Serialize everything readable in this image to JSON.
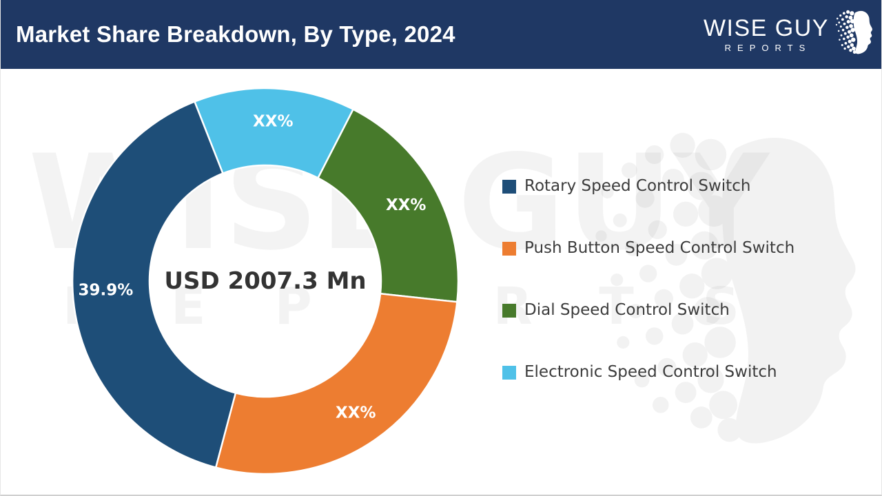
{
  "header": {
    "title": "Market Share Breakdown, By Type, 2024",
    "background_color": "#1f3864",
    "logo": {
      "line1": "WISE GUY",
      "line2": "REPORTS"
    }
  },
  "watermark": {
    "line1": "WISE GUY",
    "line2": "REPORTS"
  },
  "chart_data": {
    "type": "donut",
    "title": "Market Share Breakdown, By Type, 2024",
    "center_label": "USD 2007.3 Mn",
    "start_angle_deg": -21.5,
    "legend_position": "right",
    "segments": [
      {
        "label": "Electronic Speed Control Switch",
        "display_label": "XX%",
        "value_pct": 13.5,
        "color": "#4fc1e8"
      },
      {
        "label": "Dial Speed Control Switch",
        "display_label": "XX%",
        "value_pct": 19.2,
        "color": "#477a2b"
      },
      {
        "label": "Push Button Speed Control Switch",
        "display_label": "XX%",
        "value_pct": 27.4,
        "color": "#ed7d31"
      },
      {
        "label": "Rotary Speed Control Switch",
        "display_label": "39.9%",
        "value_pct": 39.9,
        "color": "#1e4e78"
      }
    ],
    "legend": [
      {
        "label": "Rotary Speed Control Switch",
        "color": "#1e4e78"
      },
      {
        "label": "Push Button Speed Control Switch",
        "color": "#ed7d31"
      },
      {
        "label": "Dial Speed Control Switch",
        "color": "#477a2b"
      },
      {
        "label": "Electronic Speed Control Switch",
        "color": "#4fc1e8"
      }
    ]
  }
}
